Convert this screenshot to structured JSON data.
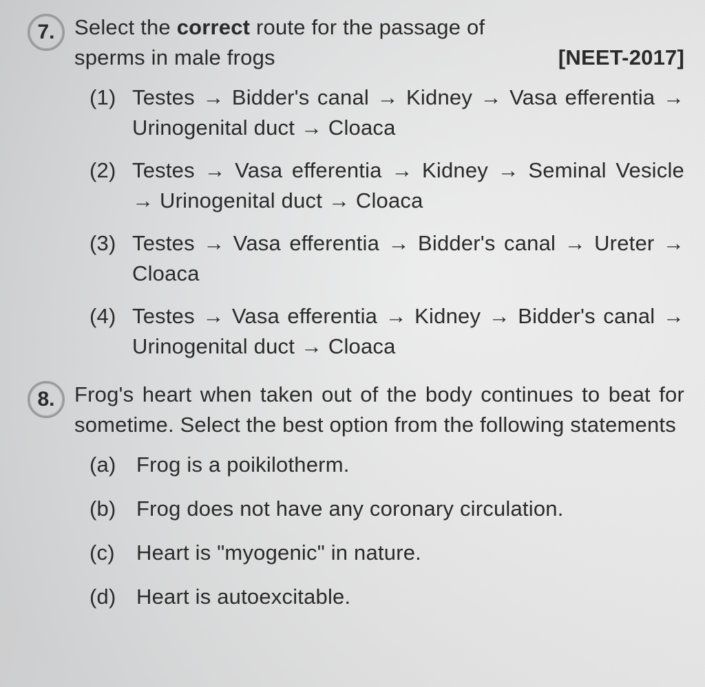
{
  "q7": {
    "number": "7.",
    "line1_main": "Select the ",
    "line1_bold": "correct",
    "line1_rest": " route for the passage of",
    "line2_main": "sperms in male frogs",
    "tag": "[NEET-2017]",
    "options": [
      {
        "num": "(1)",
        "text": "Testes → Bidder's canal → Kidney → Vasa efferentia → Urinogenital duct → Cloaca"
      },
      {
        "num": "(2)",
        "text": "Testes → Vasa efferentia → Kidney → Seminal Vesicle → Urinogenital duct → Cloaca"
      },
      {
        "num": "(3)",
        "text": "Testes → Vasa efferentia → Bidder's canal → Ureter → Cloaca"
      },
      {
        "num": "(4)",
        "text": "Testes → Vasa efferentia → Kidney → Bidder's canal → Urinogenital duct → Cloaca"
      }
    ]
  },
  "q8": {
    "number": "8.",
    "text": "Frog's heart when taken out of the body continues to beat for sometime. Select the best option from the following statements",
    "statements": [
      {
        "num": "(a)",
        "text": "Frog is a poikilotherm."
      },
      {
        "num": "(b)",
        "text": "Frog does not have any coronary circulation."
      },
      {
        "num": "(c)",
        "text": "Heart is \"myogenic\" in nature."
      },
      {
        "num": "(d)",
        "text": "Heart is autoexcitable."
      }
    ]
  }
}
